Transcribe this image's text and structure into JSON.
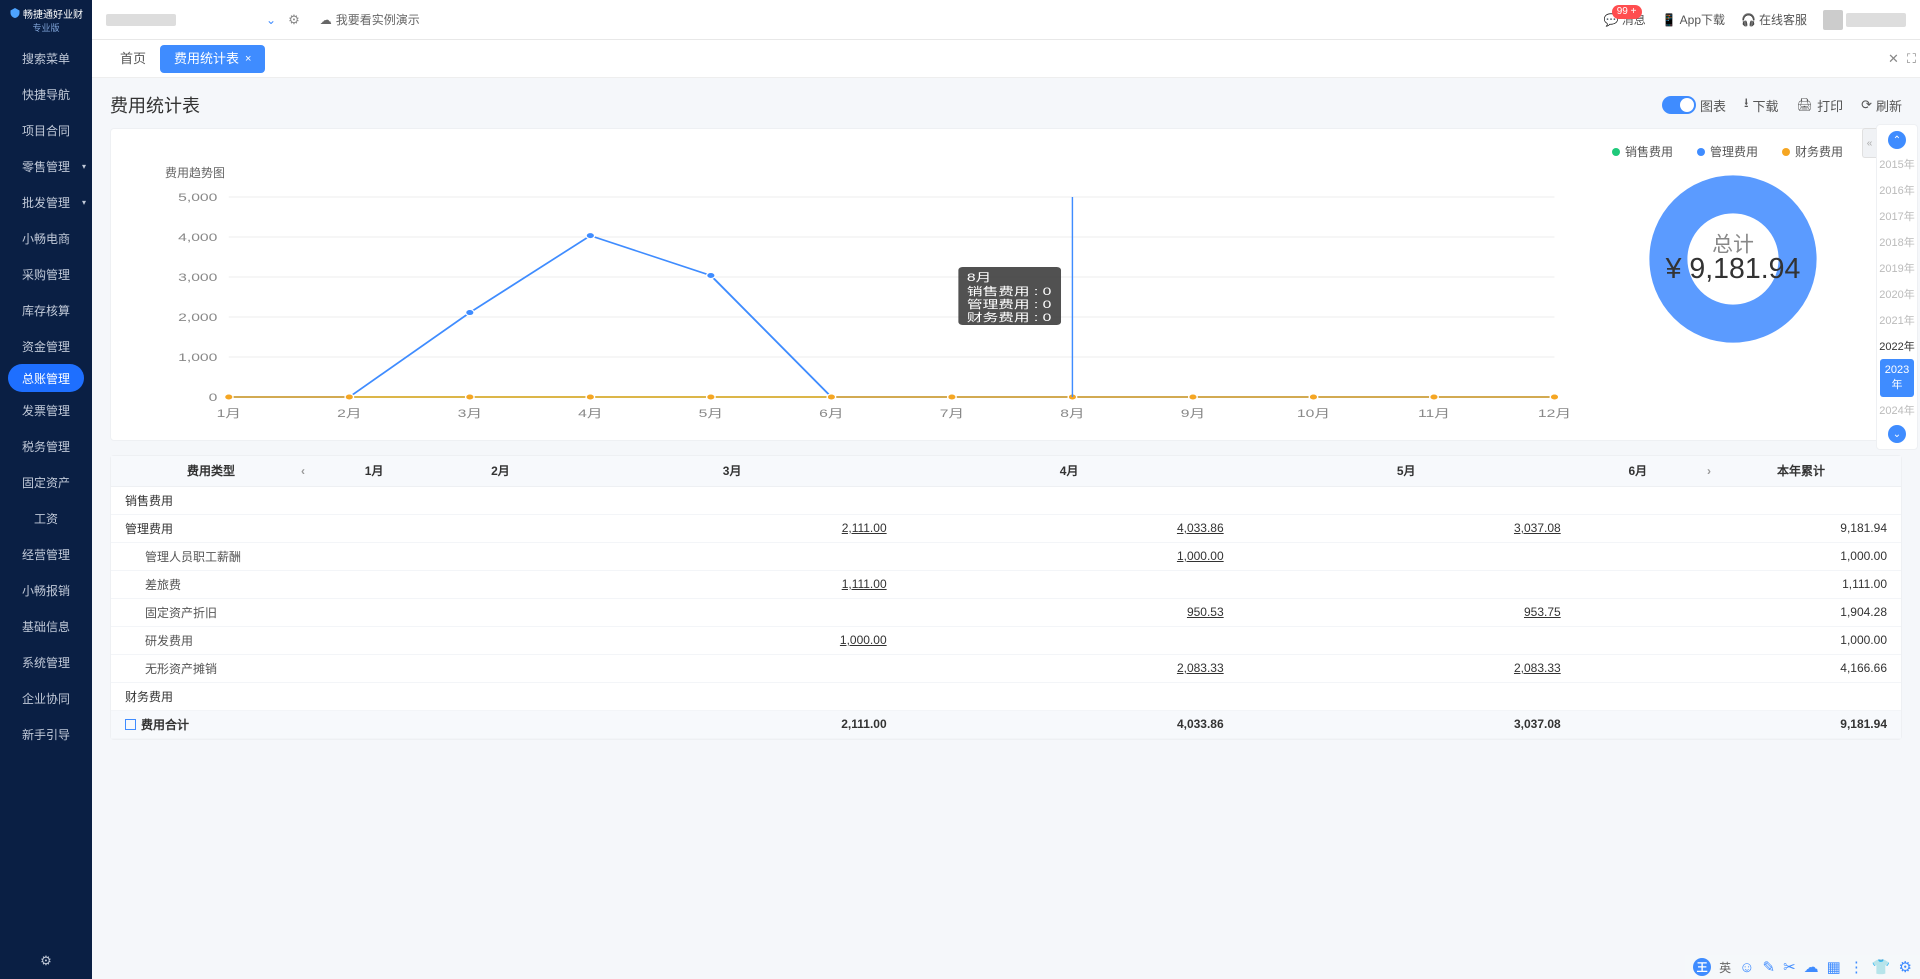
{
  "brand": {
    "name": "畅捷通好业财",
    "edition": "专业版"
  },
  "top": {
    "company": "",
    "demo": "我要看实例演示",
    "msg": "消息",
    "badge": "99 +",
    "app": "App下载",
    "service": "在线客服",
    "user": ""
  },
  "sidebar": {
    "items": [
      {
        "label": "搜索菜单"
      },
      {
        "label": "快捷导航"
      },
      {
        "label": "项目合同"
      },
      {
        "label": "零售管理",
        "arrow": true
      },
      {
        "label": "批发管理",
        "arrow": true
      },
      {
        "label": "小畅电商"
      },
      {
        "label": "采购管理"
      },
      {
        "label": "库存核算"
      },
      {
        "label": "资金管理"
      },
      {
        "label": "总账管理",
        "active": true
      },
      {
        "label": "发票管理"
      },
      {
        "label": "税务管理"
      },
      {
        "label": "固定资产"
      },
      {
        "label": "工资"
      },
      {
        "label": "经营管理"
      },
      {
        "label": "小畅报销"
      },
      {
        "label": "基础信息"
      },
      {
        "label": "系统管理"
      },
      {
        "label": "企业协同"
      },
      {
        "label": "新手引导"
      }
    ]
  },
  "tabs": [
    {
      "label": "首页"
    },
    {
      "label": "费用统计表",
      "active": true,
      "closable": true
    }
  ],
  "page": {
    "title": "费用统计表",
    "tools": {
      "chart": "图表",
      "download": "下载",
      "print": "打印",
      "refresh": "刷新"
    }
  },
  "chart": {
    "title": "费用趋势图",
    "legend": [
      {
        "label": "销售费用",
        "color": "#1fc97a"
      },
      {
        "label": "管理费用",
        "color": "#3f8cff"
      },
      {
        "label": "财务费用",
        "color": "#f5a623"
      }
    ],
    "xlabels": [
      "1月",
      "2月",
      "3月",
      "4月",
      "5月",
      "6月",
      "7月",
      "8月",
      "9月",
      "10月",
      "11月",
      "12月"
    ],
    "ylabels": [
      "0",
      "1,000",
      "2,000",
      "3,000",
      "4,000",
      "5,000"
    ],
    "ymax": 5000,
    "series": {
      "sales": [
        0,
        0,
        0,
        0,
        0,
        0,
        0,
        0,
        0,
        0,
        0,
        0
      ],
      "mgmt": [
        0,
        0,
        2111,
        4034,
        3037,
        0,
        0,
        0,
        0,
        0,
        0,
        0
      ],
      "fin": [
        0,
        0,
        0,
        0,
        0,
        0,
        0,
        0,
        0,
        0,
        0,
        0
      ]
    },
    "hover": {
      "x": 7,
      "title": "8月",
      "rows": [
        "销售费用 : 0",
        "管理费用 : 0",
        "财务费用 : 0"
      ]
    },
    "plot": {
      "bg": "#ffffff",
      "grid": "#eeeeee"
    }
  },
  "donut": {
    "label": "总计",
    "value": "¥ 9,181.94",
    "color": "#5b9bff",
    "track": "#ffffff"
  },
  "years": {
    "list": [
      "2015年",
      "2016年",
      "2017年",
      "2018年",
      "2019年",
      "2020年",
      "2021年",
      "2022年",
      "2023年",
      "2024年"
    ],
    "dark": "2022年",
    "selected": "2023年"
  },
  "table": {
    "cols": [
      "费用类型",
      "1月",
      "2月",
      "3月",
      "4月",
      "5月",
      "6月",
      "本年累计"
    ],
    "rows": [
      {
        "label": "销售费用",
        "vals": [
          "",
          "",
          "",
          "",
          "",
          "",
          ""
        ]
      },
      {
        "label": "管理费用",
        "vals": [
          "",
          "",
          "2,111.00",
          "4,033.86",
          "3,037.08",
          "",
          "9,181.94"
        ],
        "link": [
          false,
          false,
          true,
          true,
          true,
          false,
          false
        ]
      },
      {
        "label": "管理人员职工薪酬",
        "indent": true,
        "vals": [
          "",
          "",
          "",
          "1,000.00",
          "",
          "",
          "1,000.00"
        ],
        "link": [
          false,
          false,
          false,
          true,
          false,
          false,
          false
        ]
      },
      {
        "label": "差旅费",
        "indent": true,
        "vals": [
          "",
          "",
          "1,111.00",
          "",
          "",
          "",
          "1,111.00"
        ],
        "link": [
          false,
          false,
          true,
          false,
          false,
          false,
          false
        ]
      },
      {
        "label": "固定资产折旧",
        "indent": true,
        "vals": [
          "",
          "",
          "",
          "950.53",
          "953.75",
          "",
          "1,904.28"
        ],
        "link": [
          false,
          false,
          false,
          true,
          true,
          false,
          false
        ]
      },
      {
        "label": "研发费用",
        "indent": true,
        "vals": [
          "",
          "",
          "1,000.00",
          "",
          "",
          "",
          "1,000.00"
        ],
        "link": [
          false,
          false,
          true,
          false,
          false,
          false,
          false
        ]
      },
      {
        "label": "无形资产摊销",
        "indent": true,
        "vals": [
          "",
          "",
          "",
          "2,083.33",
          "2,083.33",
          "",
          "4,166.66"
        ],
        "link": [
          false,
          false,
          false,
          true,
          true,
          false,
          false
        ]
      },
      {
        "label": "财务费用",
        "vals": [
          "",
          "",
          "",
          "",
          "",
          "",
          ""
        ]
      }
    ],
    "total": {
      "label": "费用合计",
      "vals": [
        "",
        "",
        "2,111.00",
        "4,033.86",
        "3,037.08",
        "",
        "9,181.94"
      ]
    }
  },
  "taskbar": {
    "ime": "王",
    "lang": "英"
  }
}
